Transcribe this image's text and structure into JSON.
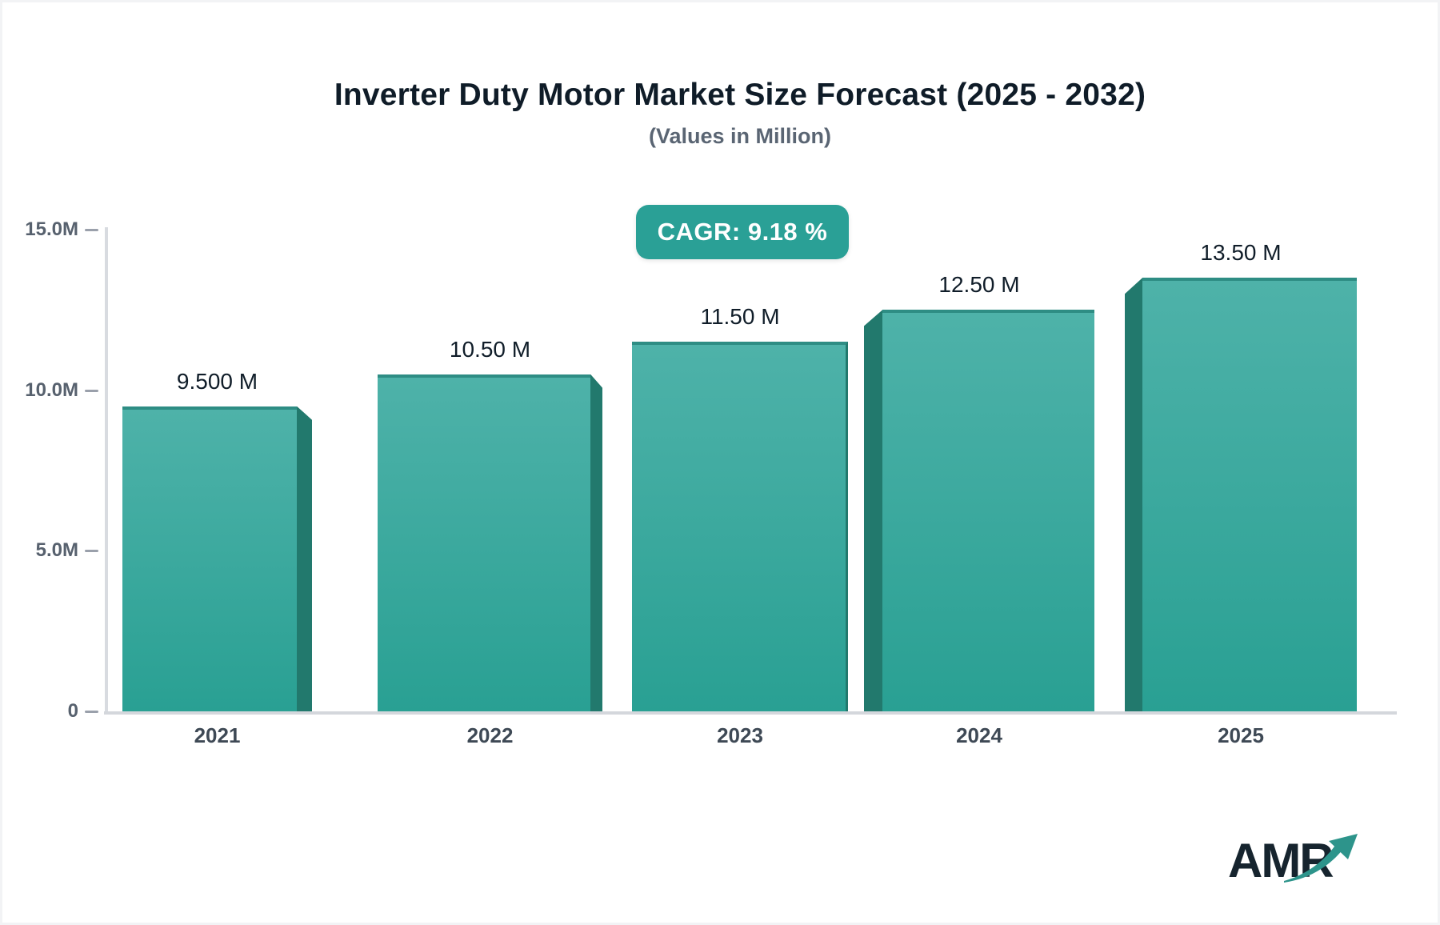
{
  "header": {
    "title": "Inverter Duty Motor Market Size Forecast (2025 - 2032)",
    "subtitle": "(Values in Million)"
  },
  "badge": {
    "label": "CAGR: 9.18 %",
    "bg": "#2aa096"
  },
  "chart_data": {
    "type": "bar",
    "title": "Inverter Duty Motor Market Size Forecast (2025 - 2032)",
    "subtitle": "(Values in Million)",
    "categories": [
      "2021",
      "2022",
      "2023",
      "2024",
      "2025"
    ],
    "values": [
      9.5,
      10.5,
      11.5,
      12.5,
      13.5
    ],
    "value_labels": [
      "9.500 M",
      "10.50 M",
      "11.50 M",
      "12.50 M",
      "13.50 M"
    ],
    "unit": "Million",
    "cagr": "9.18 %",
    "xlabel": "",
    "ylabel": "",
    "ylim": [
      0,
      15
    ],
    "yticks": [
      {
        "label": "15.0M",
        "value": 15
      },
      {
        "label": "10.0M",
        "value": 10
      },
      {
        "label": "5.0M",
        "value": 5
      },
      {
        "label": "0",
        "value": 0
      }
    ],
    "grid": false,
    "legend": false,
    "bar_style": "3d-perspective-toward-center",
    "colors": {
      "bar_top": "#4eb2a9",
      "bar_bottom": "#29a093",
      "bar_edge": "#2e8d84",
      "bar_side": "#22796d",
      "axis_line": "#d7dade",
      "axis_text": "#57616e",
      "year_text": "#3e4955",
      "value_text": "#101d29",
      "badge_bg": "#2aa096",
      "title_text": "#0f1c28",
      "subtitle_text": "#5a6573"
    }
  },
  "logo": {
    "text": "AMR",
    "arrow_icon": "trending-up-arrow",
    "text_color": "#16242e",
    "arrow_color": "#2d948b"
  }
}
